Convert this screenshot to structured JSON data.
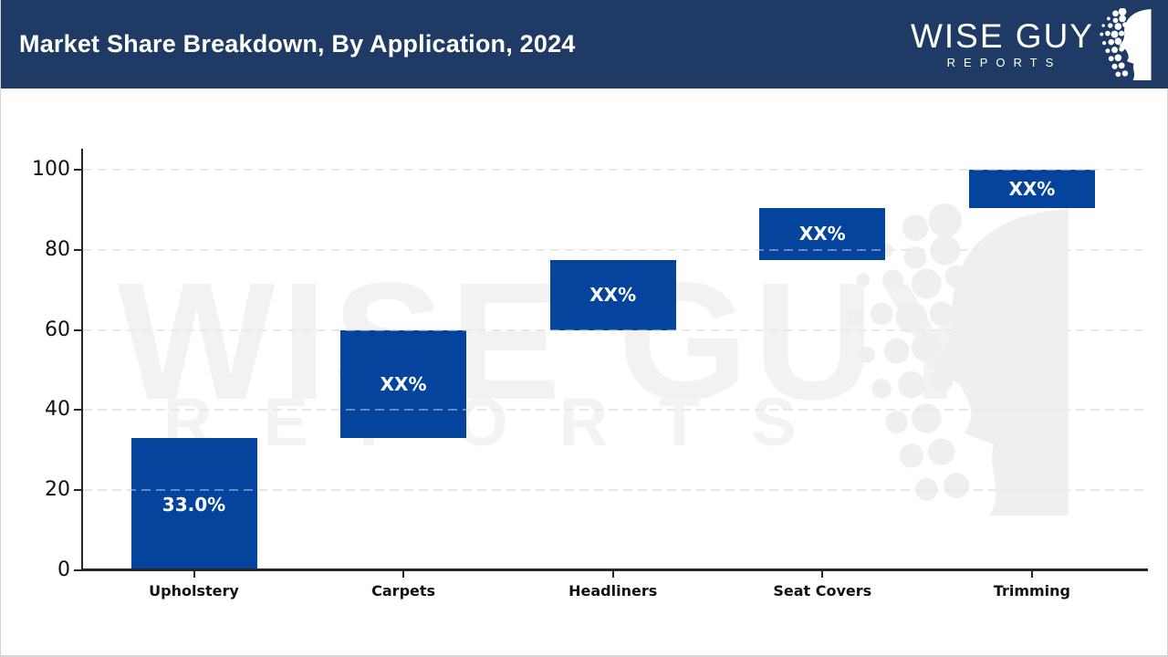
{
  "header": {
    "title": "Market Share Breakdown, By Application, 2024",
    "logo": {
      "line1": "WISE GUY",
      "line2": "REPORTS"
    }
  },
  "watermark": {
    "line1": "WISE GUY",
    "line2": "REPORTS"
  },
  "chart_data": {
    "type": "bar",
    "subtype": "waterfall",
    "title": "Market Share Breakdown, By Application, 2024",
    "xlabel": "",
    "ylabel": "",
    "categories": [
      "Upholstery",
      "Carpets",
      "Headliners",
      "Seat Covers",
      "Trimming"
    ],
    "segments": [
      {
        "category": "Upholstery",
        "start": 0,
        "end": 33,
        "value": 33.0,
        "label": "33.0%"
      },
      {
        "category": "Carpets",
        "start": 33,
        "end": 60,
        "value": 27.0,
        "label": "XX%"
      },
      {
        "category": "Headliners",
        "start": 60,
        "end": 77.5,
        "value": 17.5,
        "label": "XX%"
      },
      {
        "category": "Seat Covers",
        "start": 77.5,
        "end": 90.5,
        "value": 13.0,
        "label": "XX%"
      },
      {
        "category": "Trimming",
        "start": 90.5,
        "end": 100,
        "value": 9.5,
        "label": "XX%"
      }
    ],
    "y_ticks": [
      0,
      20,
      40,
      60,
      80,
      100
    ],
    "ylim": [
      0,
      100
    ],
    "grid": true,
    "grid_style": "dashed",
    "legend": "none",
    "colors": {
      "bar": "#05449c",
      "gridline": "#dcdcdc",
      "axis": "#262626",
      "header_bg": "#203a66",
      "bar_label_text": "#ffffff",
      "watermark": "#f2f2f2"
    }
  }
}
